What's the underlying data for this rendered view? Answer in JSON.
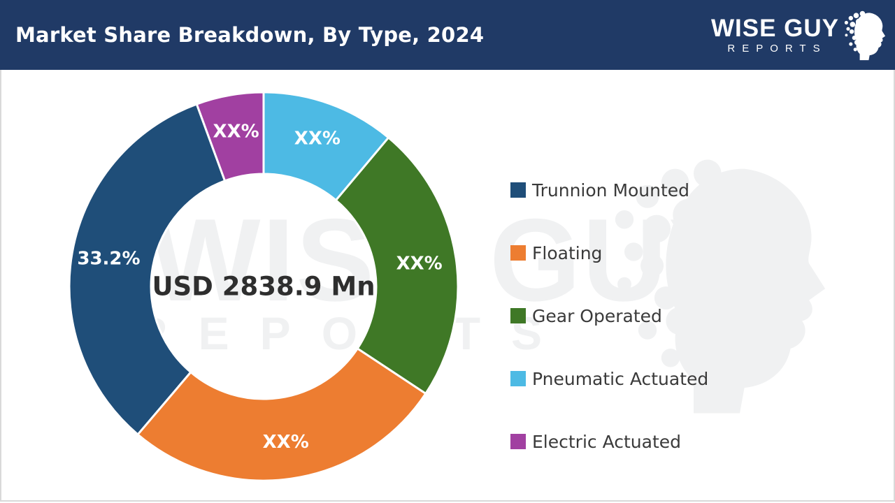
{
  "header": {
    "title": "Market Share Breakdown, By Type, 2024",
    "logo": {
      "line1": "WISE GUY",
      "line2": "REPORTS"
    }
  },
  "watermark": {
    "line1": "WISE GUY",
    "line2": "REPORTS"
  },
  "chart_data": {
    "type": "pie",
    "subtype": "donut",
    "title": "Market Share Breakdown, By Type, 2024",
    "center_label": "USD 2838.9 Mn",
    "legend_position": "right",
    "start_angle_deg": 90,
    "direction": "counterclockwise from top: Electric, Trunnion, Floating, Gear, Pneumatic",
    "slices": [
      {
        "label": "Trunnion Mounted",
        "display_value": "33.2%",
        "value": 33.2,
        "color": "#1f4e79"
      },
      {
        "label": "Floating",
        "display_value": "XX%",
        "value": 26.9,
        "color": "#ed7d31"
      },
      {
        "label": "Gear Operated",
        "display_value": "XX%",
        "value": 23.2,
        "color": "#3f7826"
      },
      {
        "label": "Pneumatic Actuated",
        "display_value": "XX%",
        "value": 11.1,
        "color": "#4dbae4"
      },
      {
        "label": "Electric Actuated",
        "display_value": "XX%",
        "value": 5.6,
        "color": "#a140a1"
      }
    ]
  },
  "colors": {
    "header_bg": "#203a66",
    "frame_border": "#d9d9d9",
    "legend_text": "#3a3a3a",
    "center_text": "#2e2e2e",
    "watermark": "#f0f1f2",
    "slice_divider": "#ffffff"
  }
}
